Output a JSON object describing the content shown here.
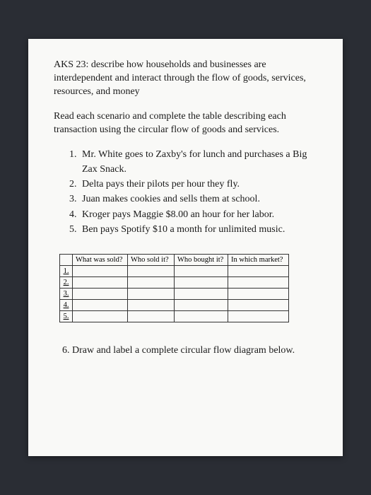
{
  "header": "AKS 23: describe how households and businesses are interdependent and interact through the flow of goods, services, resources, and money",
  "instructions": "Read each scenario and complete the table describing each transaction using the circular flow of goods and services.",
  "scenarios": [
    {
      "num": "1.",
      "text": "Mr. White goes to Zaxby's for lunch and purchases a Big Zax Snack."
    },
    {
      "num": "2.",
      "text": "Delta pays their pilots per hour they fly."
    },
    {
      "num": "3.",
      "text": "Juan makes cookies and sells them at school."
    },
    {
      "num": "4.",
      "text": "Kroger pays Maggie $8.00 an hour for her labor."
    },
    {
      "num": "5.",
      "text": "Ben pays Spotify $10 a month for unlimited music."
    }
  ],
  "table": {
    "columns": [
      "What was sold?",
      "Who sold it?",
      "Who bought it?",
      "In which market?"
    ],
    "row_labels": [
      "1.",
      "2.",
      "3.",
      "4.",
      "5."
    ],
    "rows": [
      [
        "",
        "",
        "",
        ""
      ],
      [
        "",
        "",
        "",
        ""
      ],
      [
        "",
        "",
        "",
        ""
      ],
      [
        "",
        "",
        "",
        ""
      ],
      [
        "",
        "",
        "",
        ""
      ]
    ]
  },
  "question6": {
    "num": "6.",
    "text": "Draw and label a complete circular flow diagram below."
  }
}
